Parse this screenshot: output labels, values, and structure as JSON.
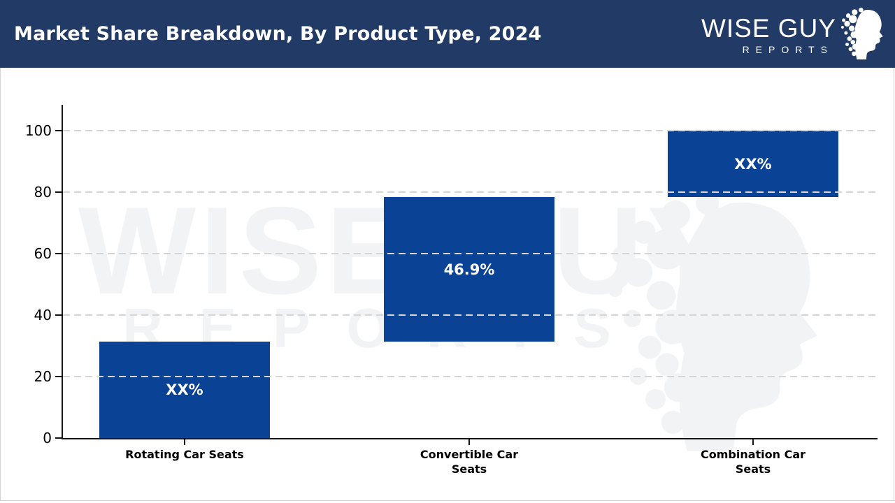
{
  "header": {
    "title": "Market Share Breakdown, By Product Type, 2024",
    "background_color": "#213a66",
    "logo": {
      "line1": "WISE GUY",
      "line2": "REPORTS"
    }
  },
  "watermark": {
    "line1": "WISE GUY",
    "line2": "REPORTS"
  },
  "chart_data": {
    "type": "bar",
    "subtype": "waterfall-floating-bars",
    "title": "Market Share Breakdown, By Product Type, 2024",
    "categories": [
      "Rotating Car Seats",
      "Convertible Car Seats",
      "Combination Car Seats"
    ],
    "category_label_lines": [
      [
        "Rotating Car Seats"
      ],
      [
        "Convertible Car",
        "Seats"
      ],
      [
        "Combination Car",
        "Seats"
      ]
    ],
    "series": [
      {
        "name": "Market Share %",
        "segments": [
          {
            "category": "Rotating Car Seats",
            "start": 0,
            "end": 31.4,
            "span": 31.4,
            "label": "XX%"
          },
          {
            "category": "Convertible Car Seats",
            "start": 31.4,
            "end": 78.3,
            "span": 46.9,
            "label": "46.9%"
          },
          {
            "category": "Combination Car Seats",
            "start": 78.3,
            "end": 100,
            "span": 21.7,
            "label": "XX%"
          }
        ]
      }
    ],
    "bar_color": "#0a4296",
    "bar_label_color": "#ffffff",
    "xlabel": "",
    "ylabel": "",
    "ylim": [
      0,
      100
    ],
    "yticks": [
      0,
      20,
      40,
      60,
      80,
      100
    ],
    "grid": "horizontal-dashed",
    "grid_on_top": true,
    "legend": "none",
    "axis_color": "#141414",
    "grid_color": "#d5d5d5"
  }
}
